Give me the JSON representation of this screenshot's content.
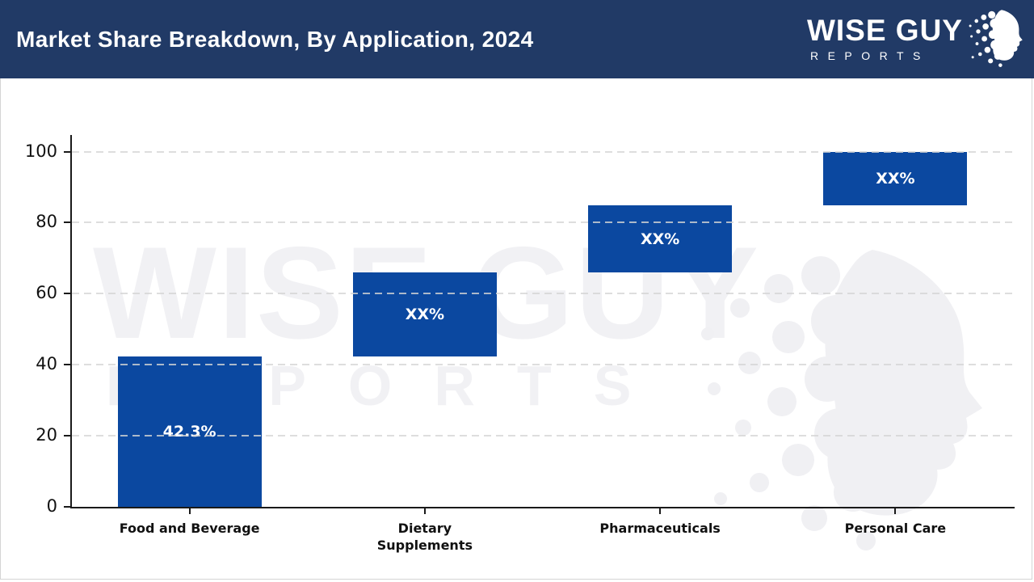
{
  "header": {
    "title": "Market Share Breakdown, By Application, 2024",
    "background_color": "#213a66",
    "logo": {
      "wordmark": "WISE GUY",
      "subtext": "REPORTS"
    }
  },
  "watermark": {
    "line1": "WISE GUY",
    "line2": "REPORTS"
  },
  "chart_data": {
    "type": "bar",
    "subtype": "waterfall",
    "title": "Market Share Breakdown, By Application, 2024",
    "categories": [
      "Food and Beverage",
      "Dietary Supplements",
      "Pharmaceuticals",
      "Personal Care"
    ],
    "category_tick_lines": [
      [
        "Food and Beverage"
      ],
      [
        "Dietary",
        "Supplements"
      ],
      [
        "Pharmaceuticals"
      ],
      [
        "Personal Care"
      ]
    ],
    "segments": [
      {
        "category": "Food and Beverage",
        "start": 0,
        "end": 42.3,
        "value": 42.3,
        "label": "42.3%"
      },
      {
        "category": "Dietary Supplements",
        "start": 42.3,
        "end": 65.9,
        "value": 23.6,
        "label": "XX%"
      },
      {
        "category": "Pharmaceuticals",
        "start": 65.9,
        "end": 84.8,
        "value": 18.9,
        "label": "XX%"
      },
      {
        "category": "Personal Care",
        "start": 84.8,
        "end": 100,
        "value": 15.2,
        "label": "XX%"
      }
    ],
    "yticks": [
      0,
      20,
      40,
      60,
      80,
      100
    ],
    "ylim": [
      0,
      105
    ],
    "xlabel": "",
    "ylabel": "",
    "bar_color": "#0b48a0",
    "label_color": "#ffffff",
    "axis_color": "#1a1a1a",
    "grid": {
      "axis": "y",
      "style": "dashed",
      "color": "#dcdcdc"
    },
    "legend": "none"
  }
}
